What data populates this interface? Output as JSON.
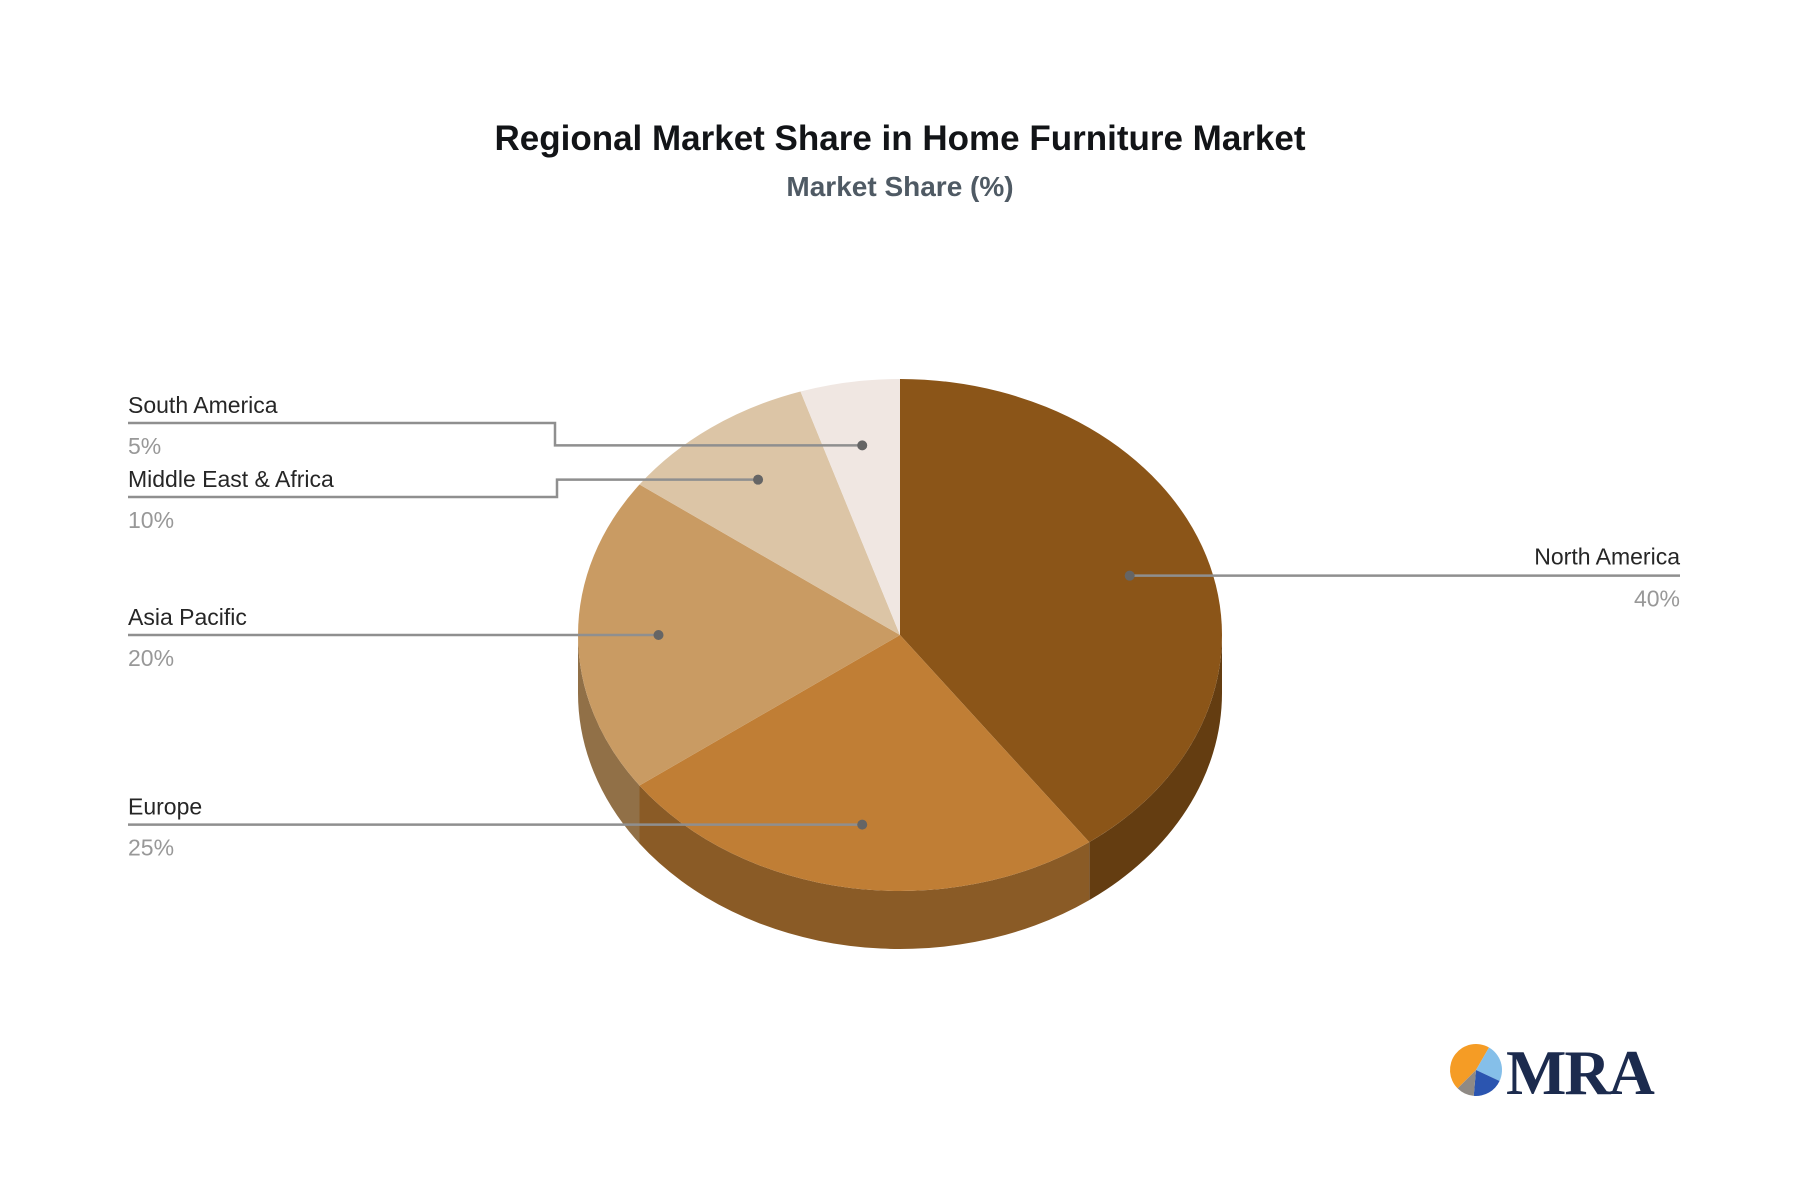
{
  "chart_data": {
    "type": "pie",
    "title": "Regional Market Share in Home Furniture Market",
    "subtitle": "Market Share (%)",
    "unit": "%",
    "effect": "3d",
    "legend_position": "none",
    "label_style": "callout-leader-lines",
    "series": [
      {
        "name": "North America",
        "value": 40,
        "display": "40%",
        "color": "#8B5518"
      },
      {
        "name": "Europe",
        "value": 25,
        "display": "25%",
        "color": "#C07E35"
      },
      {
        "name": "Asia Pacific",
        "value": 20,
        "display": "20%",
        "color": "#C99B63"
      },
      {
        "name": "Middle East & Africa",
        "value": 10,
        "display": "10%",
        "color": "#DCC5A6"
      },
      {
        "name": "South America",
        "value": 5,
        "display": "5%",
        "color": "#F0E7E2"
      }
    ],
    "label_name_color": "#262626",
    "label_value_color": "#989898",
    "leader_line_color": "#8F8F8F"
  },
  "logo": {
    "text": "MRA",
    "text_color": "#1C2B4E",
    "pie": [
      {
        "name": "orange-slice",
        "color": "#F59C25",
        "start": 225,
        "end": 390
      },
      {
        "name": "light-blue-slice",
        "color": "#85BFE9",
        "start": 30,
        "end": 115
      },
      {
        "name": "dark-blue-slice",
        "color": "#2B55B0",
        "start": 115,
        "end": 185
      },
      {
        "name": "gray-slice",
        "color": "#8F8A85",
        "start": 185,
        "end": 225
      }
    ]
  }
}
